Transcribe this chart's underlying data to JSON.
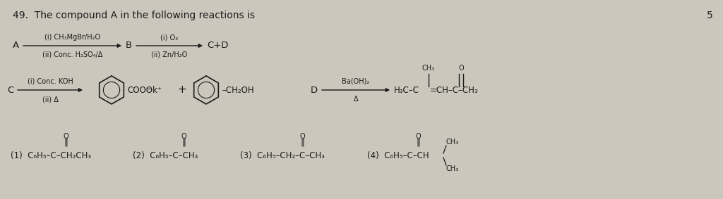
{
  "background_color": "#cbc7bc",
  "text_color": "#1a1a1a",
  "figsize": [
    10.24,
    2.83
  ],
  "dpi": 100,
  "title": "49.  The compound A in the following reactions is",
  "num5": "5",
  "row1_A": "A",
  "row1_arrow1_above": "(i) CH₃MgBr/H₂O",
  "row1_arrow1_below": "(ii) Conc. H₂SO₄/Δ",
  "row1_B": "B",
  "row1_arrow2_above": "(i) O₃",
  "row1_arrow2_below": "(ii) Zn/H₂O",
  "row1_CD": "C+D",
  "row2_C": "C",
  "row2_arrow_above": "(i) Conc. KOH",
  "row2_arrow_below": "(ii) Δ",
  "row2_coo": "COOΘk⁺",
  "row2_plus": "+",
  "row2_ch2oh": "–CH₂OH",
  "row2_D": "D",
  "row2_Darrow_above": "Ba(OH)₂",
  "row2_Darrow_below": "Δ",
  "row2_product1": "H₃C–C",
  "row2_CH3branch": "CH₃",
  "row2_product2": "=CH–C–CH₃",
  "row2_O": "O",
  "opt1": "(1)  C₆H₅–C–CH₂CH₃",
  "opt2": "(2)  C₆H₅–C–CH₃",
  "opt3": "(3)  C₆H₅–CH₂–C–CH₃",
  "opt4_base": "(4)  C₆H₅–C–CH",
  "opt4_ch3": "CH₃",
  "opt_O": "O",
  "opt_dbl": "‖"
}
